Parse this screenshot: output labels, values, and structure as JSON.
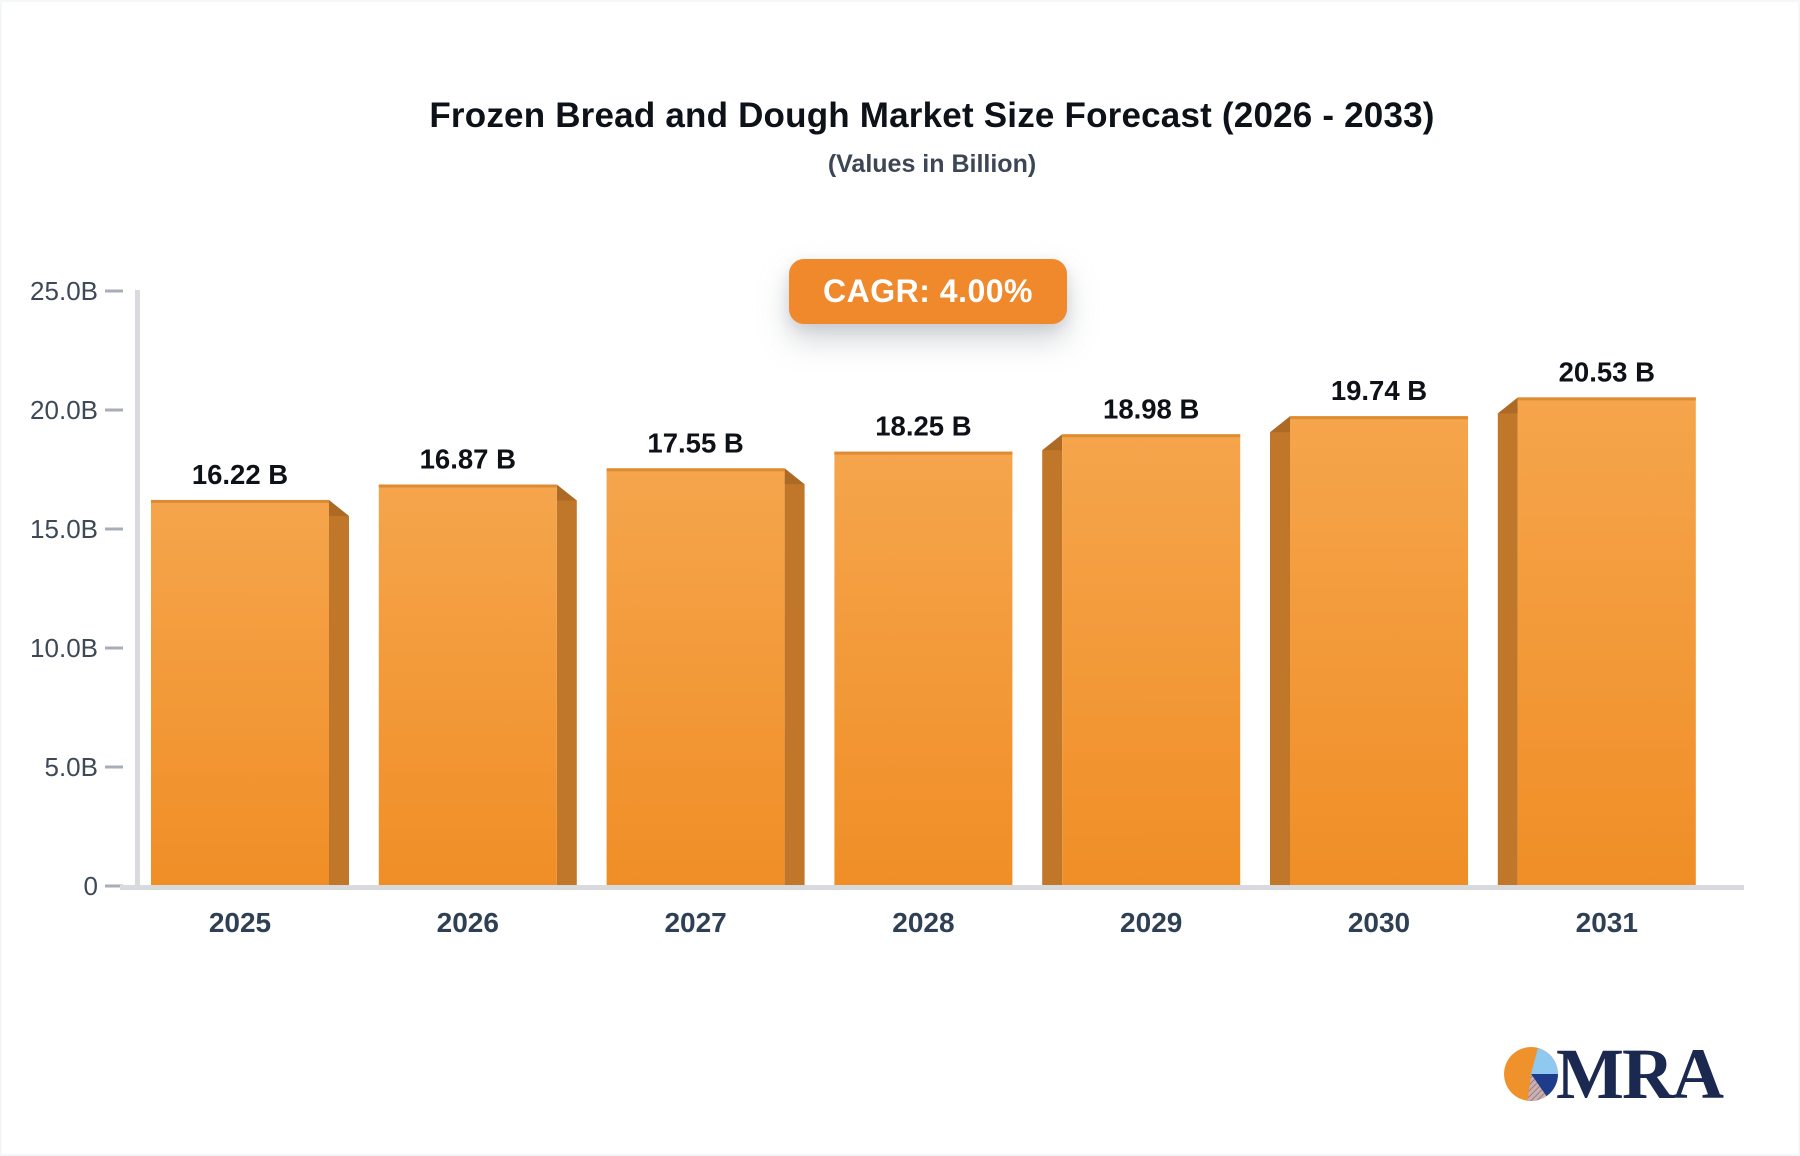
{
  "chart_data": {
    "type": "bar",
    "title": "Frozen Bread and Dough Market Size Forecast (2026 - 2033)",
    "subtitle": "(Values in Billion)",
    "badge_label": "CAGR: 4.00%",
    "categories": [
      "2025",
      "2026",
      "2027",
      "2028",
      "2029",
      "2030",
      "2031"
    ],
    "values": [
      16.22,
      16.87,
      17.55,
      18.25,
      18.98,
      19.74,
      20.53
    ],
    "value_labels": [
      "16.22 B",
      "16.87 B",
      "17.55 B",
      "18.25 B",
      "18.98 B",
      "19.74 B",
      "20.53 B"
    ],
    "xlabel": "",
    "ylabel": "",
    "ylim": [
      0,
      25
    ],
    "y_ticks": [
      {
        "value": 0,
        "label": "0"
      },
      {
        "value": 5,
        "label": "5.0B"
      },
      {
        "value": 10,
        "label": "10.0B"
      },
      {
        "value": 15,
        "label": "15.0B"
      },
      {
        "value": 20,
        "label": "20.0B"
      },
      {
        "value": 25,
        "label": "25.0B"
      }
    ],
    "grid": false,
    "legend": false,
    "bar_style": "3d-bevel"
  },
  "colors": {
    "badge_bg": "#f0882c",
    "bar_face_top": "#f5a54c",
    "bar_face_bottom": "#f08e26",
    "bar_top_edge": "#de8c33",
    "bar_side": "#c1772a",
    "axis_line": "#d9dade",
    "tick_mark": "#a8aeb8",
    "tick_text": "#3e4957",
    "x_label_text": "#2f4054",
    "value_text": "#0e1117",
    "logo_navy": "#1b2950",
    "logo_orange": "#f0922b",
    "logo_lightblue": "#8fc9ef",
    "logo_rose": "#c9b0b2",
    "logo_rose_line": "#8d6b6e"
  },
  "logo": {
    "text": "MRA"
  }
}
